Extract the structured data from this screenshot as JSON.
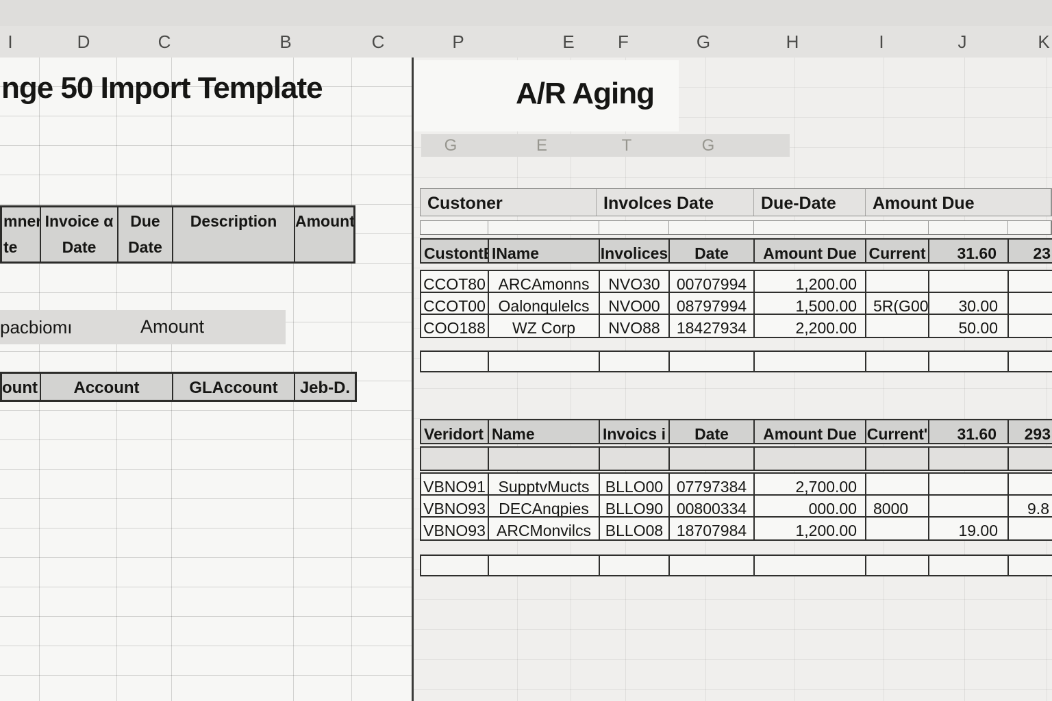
{
  "column_strip": {
    "letters": [
      "I",
      "D",
      "C",
      "B",
      "C",
      "P",
      "E",
      "F",
      "G",
      "H",
      "I",
      "J",
      "K"
    ]
  },
  "left_sheet": {
    "title": "nge 50 Import Template",
    "import_table": {
      "header_row1": [
        "mner",
        "Invoice α",
        "Due",
        "Description",
        "Amount"
      ],
      "header_row2": [
        "te",
        "Date",
        "Date",
        "",
        ""
      ]
    },
    "band": {
      "left_label": "pacbiomı",
      "right_label": "Amount"
    },
    "account_table": {
      "headers": [
        "ount",
        "Account",
        "GLAccount",
        "Jeb-D."
      ]
    }
  },
  "right_sheet": {
    "title": "A/R Aging",
    "mini_column_letters": [
      "G",
      "E",
      "T",
      "G"
    ],
    "ar_table": {
      "group_headers": [
        "Custoner",
        "Involces Date",
        "Due-Date",
        "Amount Due"
      ],
      "column_headers": [
        "CustontE",
        "IName",
        "Involices",
        "Date",
        "Amount Due",
        "Current",
        "31.60",
        "23"
      ],
      "rows": [
        [
          "CCOT80",
          "ARCAmonns",
          "NVO30",
          "00707994",
          "1,200.00",
          "",
          "",
          ""
        ],
        [
          "CCOT00",
          "Oalonqulelcs",
          "NVO00",
          "08797994",
          "1,500.00",
          "5R(G00",
          "30.00",
          ""
        ],
        [
          "COO188",
          "WZ Corp",
          "NVO88",
          "18427934",
          "2,200.00",
          "",
          "50.00",
          ""
        ]
      ]
    },
    "vendor_table": {
      "column_headers": [
        "Veridort",
        "Name",
        "Invoics i",
        "Date",
        "Amount Due",
        "Current'",
        "31.60",
        "293"
      ],
      "rows": [
        [
          "VBNO91",
          "SupptvMucts",
          "BLLO00",
          "07797384",
          "2,700.00",
          "",
          "",
          ""
        ],
        [
          "VBNO93",
          "DECAnqpies",
          "BLLO90",
          "00800334",
          "000.00",
          "8000",
          "",
          "9.8"
        ],
        [
          "VBNO93",
          "ARCMonvilcs",
          "BLLO08",
          "18707984",
          "1,200.00",
          "",
          "19.00",
          ""
        ]
      ]
    }
  },
  "colors": {
    "header_cell": "#d3d3d1",
    "band_cell": "#dcdbd9",
    "sheet_bg": "#f7f7f5",
    "border_dark": "#2c2c2a"
  }
}
